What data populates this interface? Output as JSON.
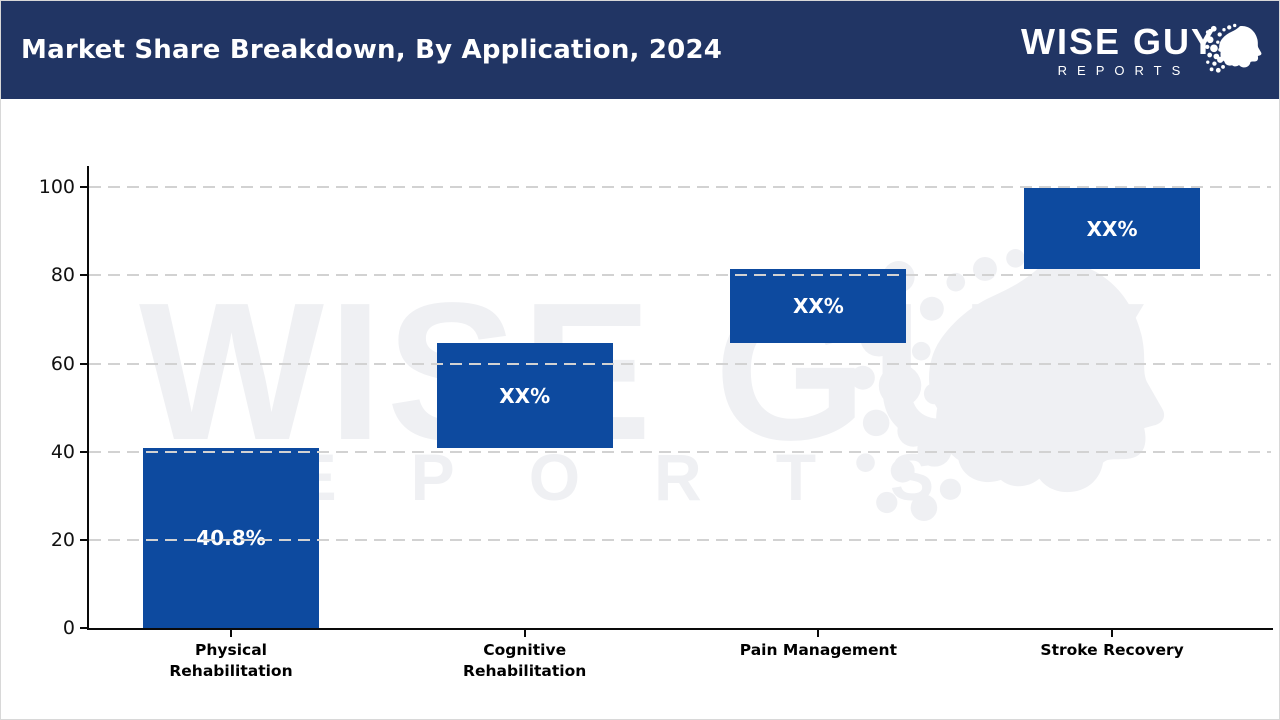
{
  "header": {
    "title": "Market Share Breakdown, By Application, 2024",
    "logo": {
      "brand": "WISE GUY",
      "sub": "REPORTS"
    }
  },
  "watermark": {
    "brand": "WISE GUY",
    "sub": "REPORTS"
  },
  "chart_data": {
    "type": "bar",
    "subtype": "waterfall",
    "title": "Market Share Breakdown, By Application, 2024",
    "categories": [
      "Physical Rehabilitation",
      "Cognitive Rehabilitation",
      "Pain Management",
      "Stroke Recovery"
    ],
    "category_lines": [
      [
        "Physical",
        "Rehabilitation"
      ],
      [
        "Cognitive",
        "Rehabilitation"
      ],
      [
        "Pain Management"
      ],
      [
        "Stroke Recovery"
      ]
    ],
    "series": [
      {
        "name": "Market share (%)",
        "segments": [
          {
            "category": "Physical Rehabilitation",
            "start": 0,
            "end": 40.8,
            "label": "40.8%"
          },
          {
            "category": "Cognitive Rehabilitation",
            "start": 40.8,
            "end": 64.6,
            "label": "XX%"
          },
          {
            "category": "Pain Management",
            "start": 64.6,
            "end": 81.4,
            "label": "XX%"
          },
          {
            "category": "Stroke Recovery",
            "start": 81.4,
            "end": 99.8,
            "label": "XX%"
          }
        ]
      }
    ],
    "ylim": [
      0,
      100
    ],
    "yticks": [
      0,
      20,
      40,
      60,
      80,
      100
    ],
    "ytick_labels": [
      "0",
      "20",
      "40",
      "60",
      "80",
      "100"
    ],
    "grid": "horizontal-dashed",
    "legend": "none",
    "colors": {
      "bar": "#0D4A9F",
      "header_bg": "#213564",
      "grid": "#D2D2D2",
      "axis": "#0A0A0A",
      "bar_label": "#FFFFFF",
      "watermark": "#EFF0F3"
    }
  }
}
